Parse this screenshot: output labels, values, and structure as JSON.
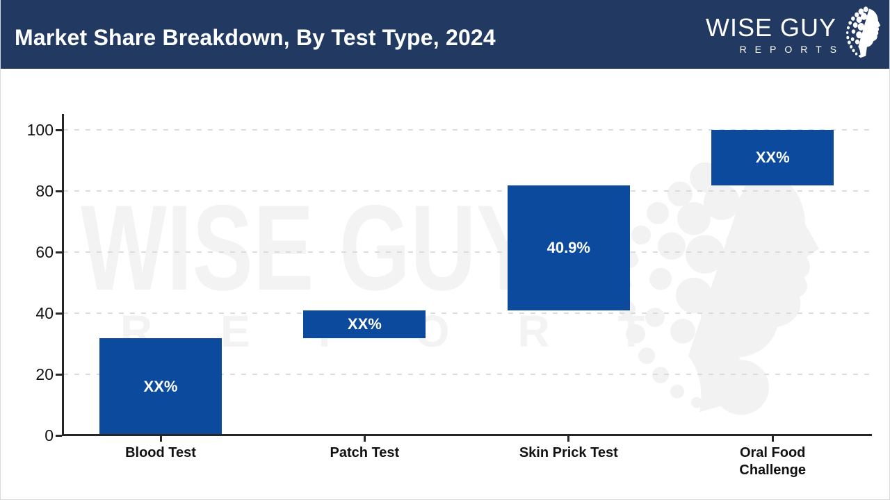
{
  "header": {
    "title": "Market Share Breakdown, By Test Type, 2024",
    "logo": {
      "line1": "WISE GUY",
      "line2": "REPORTS"
    }
  },
  "watermark": {
    "line1": "WISE GUY",
    "line2": "R E P O R T S"
  },
  "colors": {
    "header_bg": "#223962",
    "bar": "#0c4a9e",
    "bar_label_text": "#ffffff",
    "grid": "#dcdcdc",
    "axis": "#262626",
    "tick_text": "#111111",
    "watermark": "#f3f3f3"
  },
  "chart_data": {
    "type": "bar",
    "subtype": "waterfall",
    "title": "Market Share Breakdown, By Test Type, 2024",
    "categories": [
      "Blood Test",
      "Patch Test",
      "Skin Prick Test",
      "Oral Food Challenge"
    ],
    "segments": [
      {
        "category": "Blood Test",
        "start": 0,
        "end": 31.9,
        "label": "XX%",
        "tick_lines": [
          "Blood Test"
        ]
      },
      {
        "category": "Patch Test",
        "start": 31.9,
        "end": 41.0,
        "label": "XX%",
        "tick_lines": [
          "Patch Test"
        ]
      },
      {
        "category": "Skin Prick Test",
        "start": 41.0,
        "end": 81.9,
        "label": "40.9%",
        "tick_lines": [
          "Skin Prick Test"
        ]
      },
      {
        "category": "Oral Food Challenge",
        "start": 81.9,
        "end": 100.0,
        "label": "XX%",
        "tick_lines": [
          "Oral Food",
          "Challenge"
        ]
      }
    ],
    "ylim": [
      0,
      100
    ],
    "yticks": [
      0,
      20,
      40,
      60,
      80,
      100
    ],
    "xlabel": "",
    "ylabel": "",
    "grid": "dashed-horizontal",
    "legend": "none"
  }
}
